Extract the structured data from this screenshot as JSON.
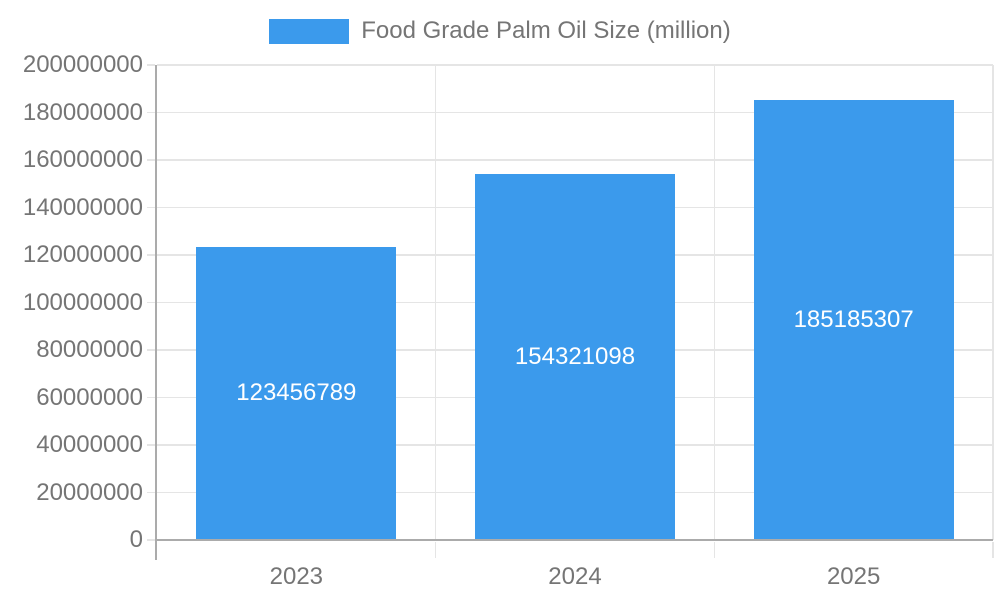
{
  "chart_data": {
    "type": "bar",
    "title": "Food Grade Palm Oil Size (million)",
    "categories": [
      "2023",
      "2024",
      "2025"
    ],
    "values": [
      123456789,
      154321098,
      185185307
    ],
    "data_labels": [
      "123456789",
      "154321098",
      "185185307"
    ],
    "xlabel": "",
    "ylabel": "",
    "ylim": [
      0,
      200000000
    ],
    "yticks": [
      0,
      20000000,
      40000000,
      60000000,
      80000000,
      100000000,
      120000000,
      140000000,
      160000000,
      180000000,
      200000000
    ],
    "legend_position": "top",
    "grid": true,
    "colors": {
      "bar": "#3B9AEC",
      "data_label": "#FFFFFF",
      "axis_line": "#ABABAB",
      "grid_line": "#E5E5E5",
      "tick_label": "#757575",
      "legend_text": "#757575",
      "background": "#FFFFFF"
    }
  }
}
